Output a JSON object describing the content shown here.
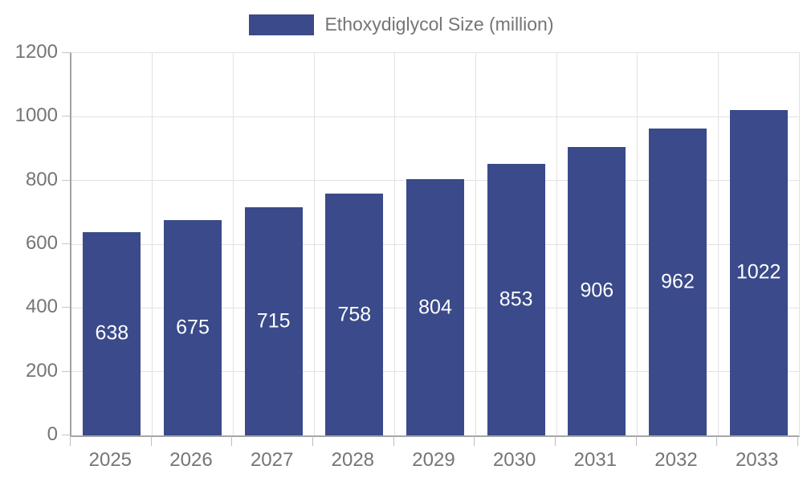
{
  "legend": {
    "label": "Ethoxydiglycol Size (million)"
  },
  "colors": {
    "bar": "#3a4a8a",
    "value_label": "#ffffff",
    "axis_text": "#757575",
    "gridline": "#e2e2e2",
    "axis_line": "#a6a6a6"
  },
  "chart_data": {
    "type": "bar",
    "title": "",
    "categories": [
      "2025",
      "2026",
      "2027",
      "2028",
      "2029",
      "2030",
      "2031",
      "2032",
      "2033"
    ],
    "series": [
      {
        "name": "Ethoxydiglycol Size (million)",
        "values": [
          638,
          675,
          715,
          758,
          804,
          853,
          906,
          962,
          1022
        ]
      }
    ],
    "value_labels": [
      "638",
      "675",
      "715",
      "758",
      "804",
      "853",
      "906",
      "962",
      "1022"
    ],
    "xlabel": "",
    "ylabel": "",
    "ylim": [
      0,
      1200
    ],
    "yticks": [
      0,
      200,
      400,
      600,
      800,
      1000,
      1200
    ],
    "grid": true,
    "legend_position": "top-center",
    "value_label_position": "inside-center"
  }
}
